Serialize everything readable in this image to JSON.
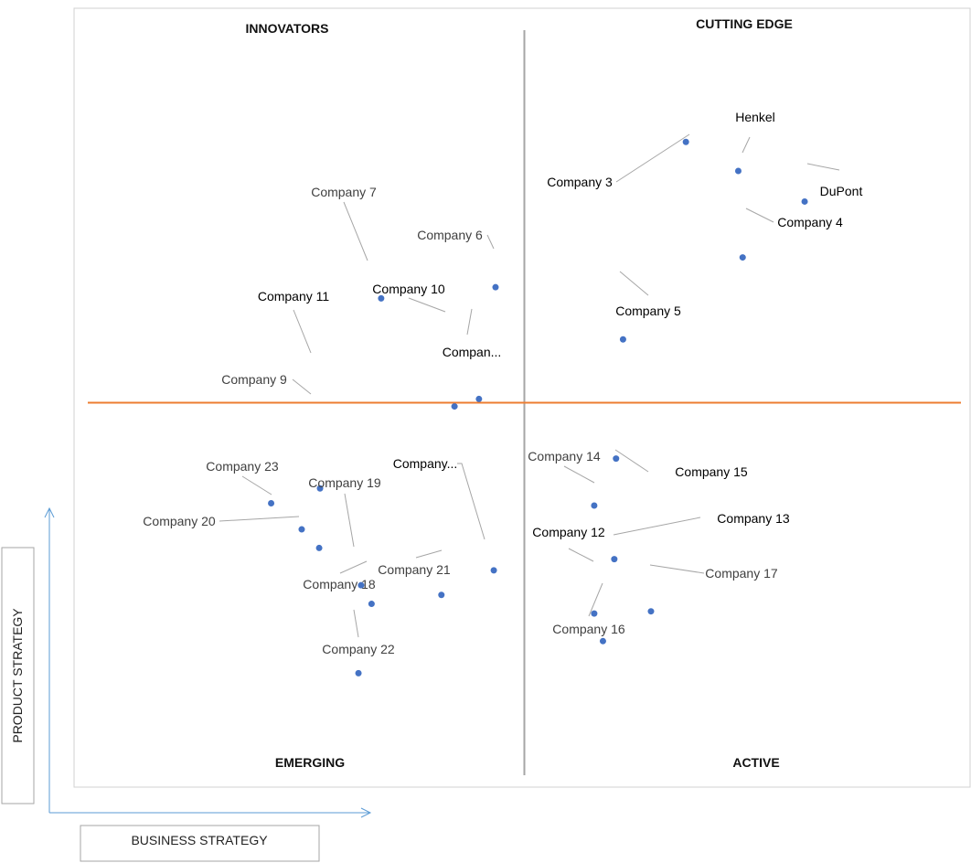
{
  "chart_data": {
    "type": "scatter",
    "title": "",
    "xlabel": "BUSINESS STRATEGY",
    "ylabel": "PRODUCT STRATEGY",
    "xlim": [
      0,
      10
    ],
    "ylim": [
      0,
      10
    ],
    "grid": false,
    "quadrant_split": {
      "x": 5,
      "y": 5
    },
    "quadrants": {
      "top_left": "INNOVATORS",
      "top_right": "CUTTING EDGE",
      "bottom_left": "EMERGING",
      "bottom_right": "ACTIVE"
    },
    "colors": {
      "point": "#4472c4",
      "horizontal_divider": "#ed7d31",
      "vertical_divider": "#a6a6a6",
      "leader": "#a6a6a6",
      "axis_arrow": "#5b9bd5"
    },
    "points": [
      {
        "label": "Henkel",
        "x": 7.45,
        "y": 8.11,
        "highlight": true
      },
      {
        "label": "DuPont",
        "x": 8.21,
        "y": 7.7,
        "highlight": true
      },
      {
        "label": "Company 3",
        "x": 6.85,
        "y": 8.5,
        "highlight": true
      },
      {
        "label": "Company 4",
        "x": 7.5,
        "y": 6.95,
        "highlight": true
      },
      {
        "label": "Company 5",
        "x": 6.13,
        "y": 5.85,
        "highlight": true
      },
      {
        "label": "Company 6",
        "x": 4.67,
        "y": 6.55,
        "highlight": false
      },
      {
        "label": "Company 7",
        "x": 3.36,
        "y": 6.4,
        "highlight": false
      },
      {
        "label": "Company 9",
        "x": 2.65,
        "y": 3.05,
        "highlight": false
      },
      {
        "label": "Company 10",
        "x": 4.2,
        "y": 4.95,
        "highlight": true
      },
      {
        "label": "Compan...",
        "x": 4.48,
        "y": 5.05,
        "highlight": true
      },
      {
        "label": "Company 11",
        "x": 2.66,
        "y": 3.85,
        "highlight": true
      },
      {
        "label": "Company 12",
        "x": 5.8,
        "y": 2.17,
        "highlight": true
      },
      {
        "label": "Company 13",
        "x": 6.03,
        "y": 2.9,
        "highlight": true
      },
      {
        "label": "Company 14",
        "x": 5.8,
        "y": 3.62,
        "highlight": false
      },
      {
        "label": "Company 15",
        "x": 6.05,
        "y": 4.25,
        "highlight": true
      },
      {
        "label": "Company 16",
        "x": 5.9,
        "y": 1.8,
        "highlight": false
      },
      {
        "label": "Company 17",
        "x": 6.45,
        "y": 2.2,
        "highlight": false
      },
      {
        "label": "Company 18",
        "x": 3.25,
        "y": 2.3,
        "highlight": false
      },
      {
        "label": "Company 19",
        "x": 3.13,
        "y": 2.55,
        "highlight": false
      },
      {
        "label": "Company 20",
        "x": 2.45,
        "y": 3.3,
        "highlight": false
      },
      {
        "label": "Company 21",
        "x": 4.05,
        "y": 2.42,
        "highlight": false
      },
      {
        "label": "Company 22",
        "x": 3.1,
        "y": 1.37,
        "highlight": false
      },
      {
        "label": "Company 23",
        "x": 2.1,
        "y": 3.65,
        "highlight": false
      },
      {
        "label": "Company...",
        "x": 4.65,
        "y": 2.75,
        "highlight": true
      }
    ]
  }
}
